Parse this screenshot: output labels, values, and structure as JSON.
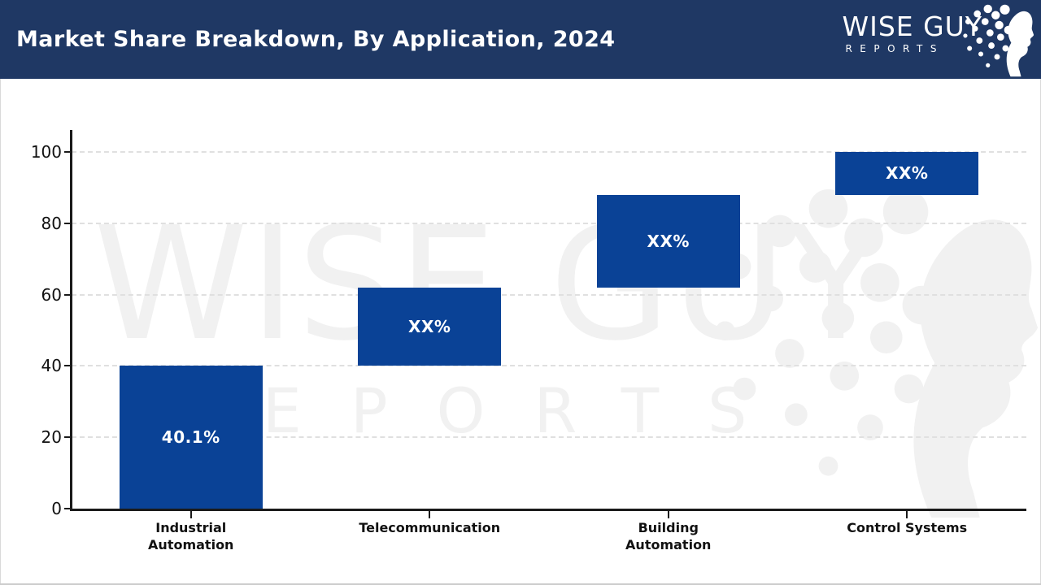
{
  "header": {
    "title": "Market Share Breakdown, By Application, 2024",
    "bg_color": "#1f3864",
    "logo": {
      "line1": "WISE GUY",
      "line2": "REPORTS"
    }
  },
  "watermark": {
    "line1": "WISE GUY",
    "line2": "REPORTS"
  },
  "chart_data": {
    "type": "bar",
    "subtype": "waterfall-stacked-segments",
    "title": "Market Share Breakdown, By Application, 2024",
    "categories": [
      "Industrial\nAutomation",
      "Telecommunication",
      "Building\nAutomation",
      "Control Systems"
    ],
    "segments": [
      {
        "category": "Industrial Automation",
        "start": 0,
        "end": 40.1,
        "label": "40.1%"
      },
      {
        "category": "Telecommunication",
        "start": 40.1,
        "end": 62,
        "label": "XX%"
      },
      {
        "category": "Building Automation",
        "start": 62,
        "end": 88,
        "label": "XX%"
      },
      {
        "category": "Control Systems",
        "start": 88,
        "end": 100,
        "label": "XX%"
      }
    ],
    "xlabel": "",
    "ylabel": "",
    "ylim": [
      0,
      100
    ],
    "yticks": [
      0,
      20,
      40,
      60,
      80,
      100
    ],
    "grid": "horizontal-dashed",
    "legend": "none",
    "bar_color": "#0a4296",
    "bar_label_color": "#ffffff",
    "axis_color": "#1a1a1a",
    "gridline_color": "#e0e0e0"
  }
}
